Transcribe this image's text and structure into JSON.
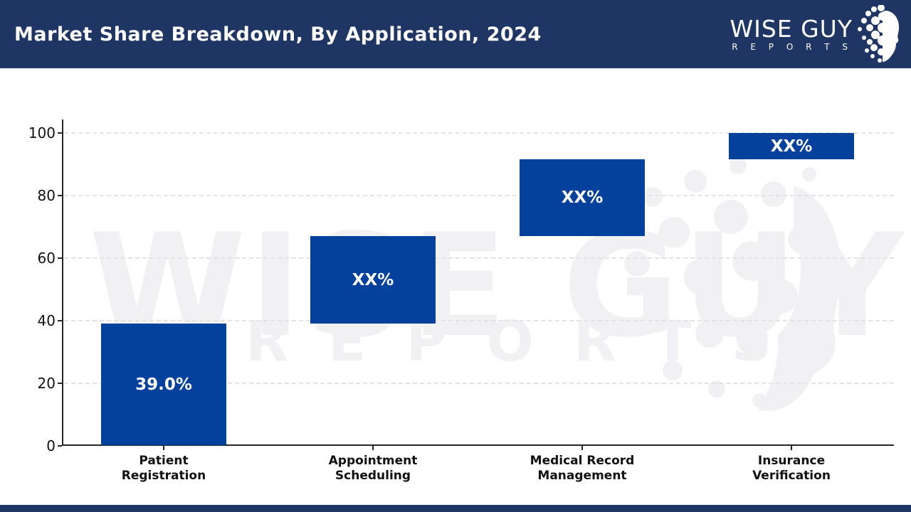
{
  "header": {
    "title": "Market Share Breakdown, By Application, 2024",
    "logo": {
      "line1": "WISE GUY",
      "line2": "R E P O R T S"
    }
  },
  "watermark": {
    "line1": "WISE GUY",
    "line2": "REPORTS"
  },
  "colors": {
    "header_bg": "#1f3564",
    "footer_bg": "#1f3564",
    "bar_fill": "#04419c",
    "bar_label_text": "#ffffff",
    "title_text": "#ffffff",
    "axis": "#262626",
    "gridline": "#e3e3e3",
    "watermark": "#f1f1f3"
  },
  "chart_data": {
    "type": "bar",
    "subtype": "floating-segment-waterfall",
    "title": "Market Share Breakdown, By Application, 2024",
    "categories": [
      "Patient Registration",
      "Appointment Scheduling",
      "Medical Record Management",
      "Insurance Verification"
    ],
    "bars": [
      {
        "category_line1": "Patient",
        "category_line2": "Registration",
        "start": 0,
        "end": 39,
        "value_label": "39.0%"
      },
      {
        "category_line1": "Appointment",
        "category_line2": "Scheduling",
        "start": 39,
        "end": 67,
        "value_label": "XX%"
      },
      {
        "category_line1": "Medical Record",
        "category_line2": "Management",
        "start": 67,
        "end": 91.5,
        "value_label": "XX%"
      },
      {
        "category_line1": "Insurance",
        "category_line2": "Verification",
        "start": 91.5,
        "end": 100,
        "value_label": "XX%"
      }
    ],
    "xlabel": "",
    "ylabel": "",
    "ylim": [
      0,
      100
    ],
    "yticks": [
      "0",
      "20",
      "40",
      "60",
      "80",
      "100"
    ],
    "grid": "horizontal-dashed",
    "legend_position": "none"
  }
}
